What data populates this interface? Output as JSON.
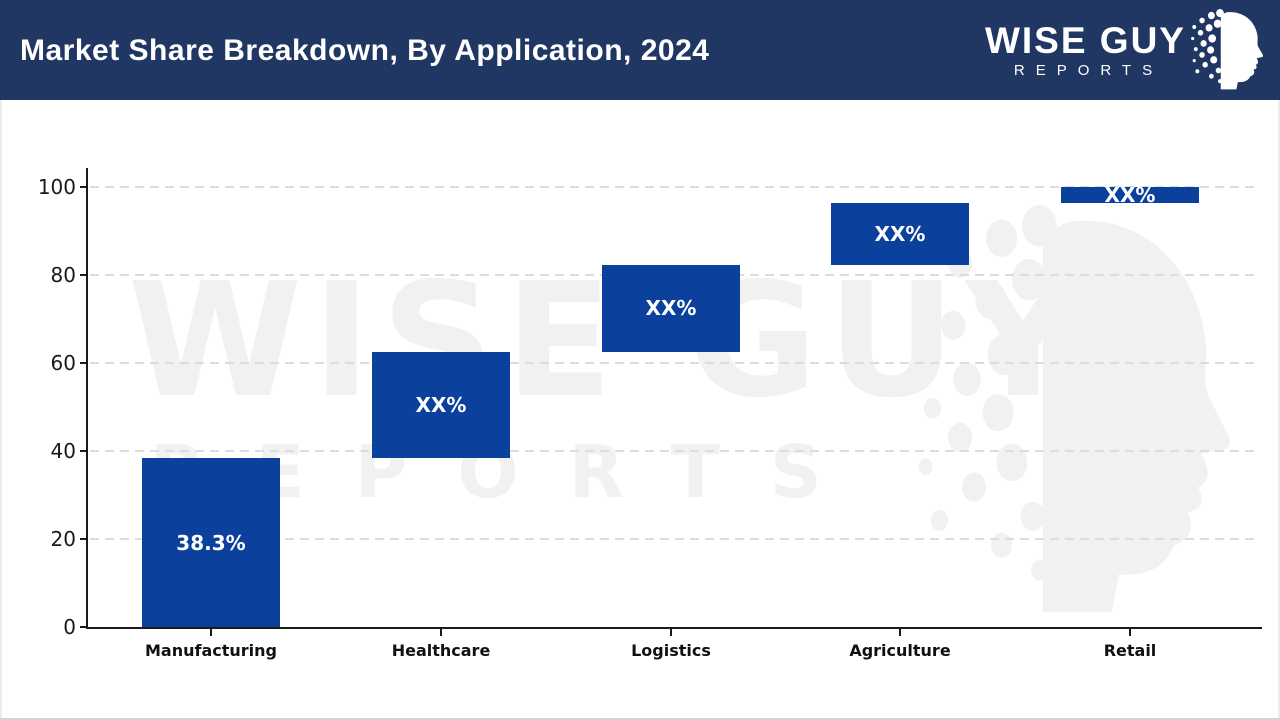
{
  "header": {
    "title": "Market Share Breakdown, By Application, 2024",
    "logo": {
      "line1": "WISE GUY",
      "line2": "REPORTS"
    }
  },
  "watermark": {
    "line1": "WISE GUY",
    "line2": "REPORTS"
  },
  "chart_data": {
    "type": "bar",
    "subtype": "floating-waterfall",
    "title": "Market Share Breakdown, By Application, 2024",
    "categories": [
      "Manufacturing",
      "Healthcare",
      "Logistics",
      "Agriculture",
      "Retail"
    ],
    "segments": [
      {
        "category": "Manufacturing",
        "start": 0,
        "end": 38.3,
        "label": "38.3%"
      },
      {
        "category": "Healthcare",
        "start": 38.3,
        "end": 62.5,
        "label": "XX%"
      },
      {
        "category": "Logistics",
        "start": 62.5,
        "end": 82.3,
        "label": "XX%"
      },
      {
        "category": "Agriculture",
        "start": 82.3,
        "end": 96.4,
        "label": "XX%"
      },
      {
        "category": "Retail",
        "start": 96.4,
        "end": 100,
        "label": "XX%"
      }
    ],
    "values_increment": [
      38.3,
      24.2,
      19.8,
      14.1,
      3.6
    ],
    "bar_labels": [
      "38.3%",
      "XX%",
      "XX%",
      "XX%",
      "XX%"
    ],
    "xlabel": "",
    "ylabel": "",
    "ylim": [
      0,
      100
    ],
    "yticks": [
      0,
      20,
      40,
      60,
      80,
      100
    ],
    "grid": "horizontal-dashed",
    "legend": "none",
    "bar_color": "#0b419c",
    "bar_label_color": "#ffffff",
    "header_color": "#203763",
    "watermark_color": "#f1f1f1"
  }
}
